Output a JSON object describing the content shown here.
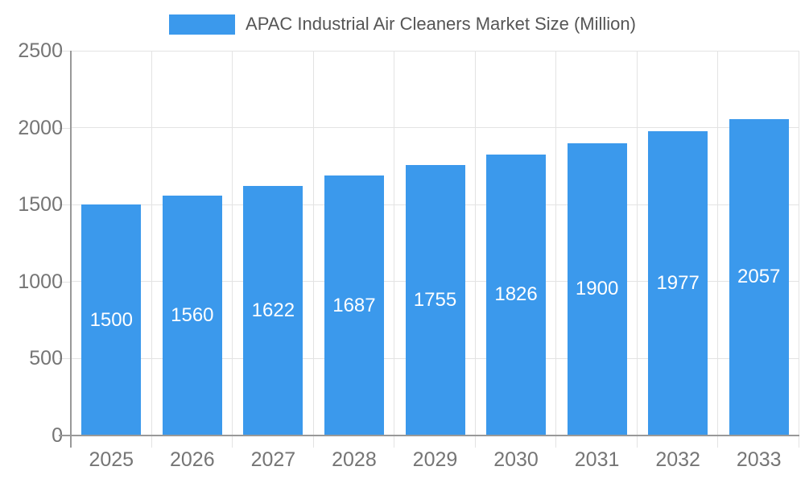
{
  "legend": {
    "label": "APAC Industrial Air Cleaners Market Size (Million)"
  },
  "chart_data": {
    "type": "bar",
    "title": "APAC Industrial Air Cleaners Market Size (Million)",
    "categories": [
      "2025",
      "2026",
      "2027",
      "2028",
      "2029",
      "2030",
      "2031",
      "2032",
      "2033"
    ],
    "values": [
      1500,
      1560,
      1622,
      1687,
      1755,
      1826,
      1900,
      1977,
      2057
    ],
    "xlabel": "",
    "ylabel": "",
    "ylim": [
      0,
      2500
    ],
    "y_ticks": [
      0,
      500,
      1000,
      1500,
      2000,
      2500
    ],
    "grid": "horizontal gridlines at y ticks, vertical gridlines at category boundaries",
    "legend_position": "top-center",
    "value_label_position": "inside-center",
    "colors": {
      "bar": "#3b99ec",
      "axis": "#999999",
      "gridline": "#e3e3e3",
      "tick_label": "#757575",
      "legend_text": "#555555",
      "value_label": "#ffffff",
      "background": "#ffffff"
    }
  }
}
